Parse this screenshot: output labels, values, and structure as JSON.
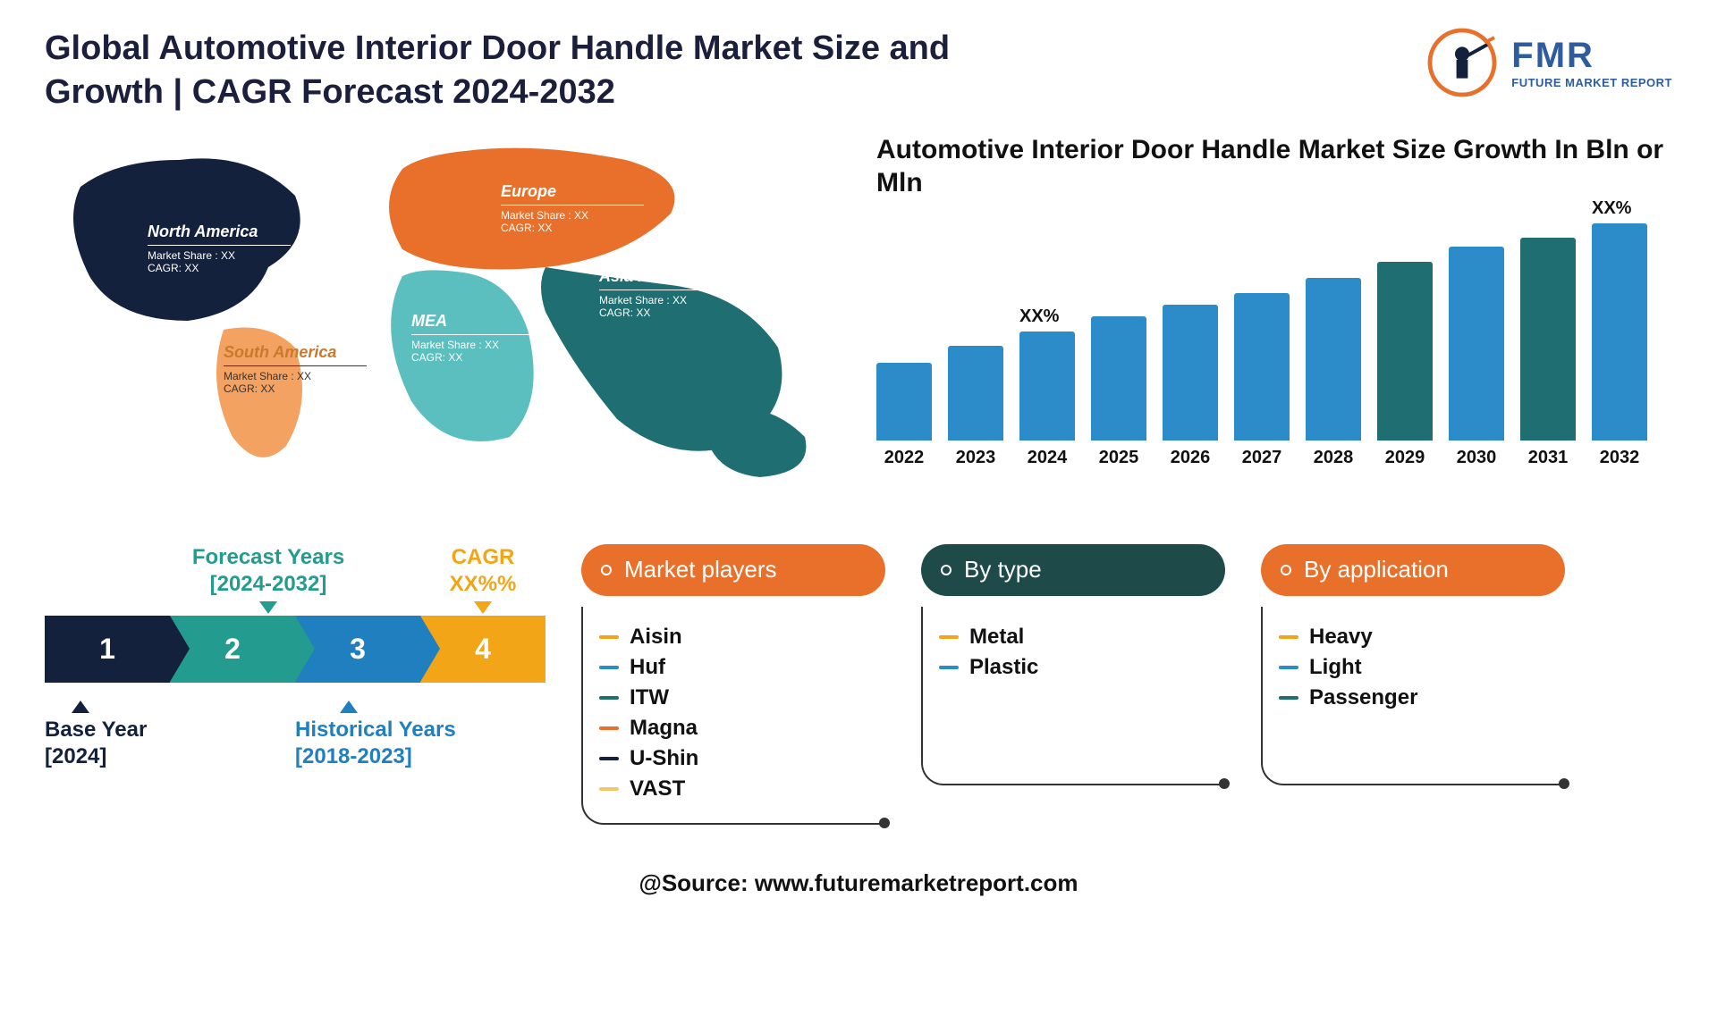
{
  "title": "Global Automotive Interior Door Handle Market Size and Growth | CAGR Forecast 2024-2032",
  "logo": {
    "fmr": "FMR",
    "sub": "FUTURE MARKET REPORT"
  },
  "source": "@Source: www.futuremarketreport.com",
  "map": {
    "regions": [
      {
        "name": "North America",
        "share": "Market Share : XX",
        "cagr": "CAGR: XX",
        "color": "#14213d"
      },
      {
        "name": "South America",
        "share": "Market Share : XX",
        "cagr": "CAGR: XX",
        "color": "#f4a261"
      },
      {
        "name": "Europe",
        "share": "Market Share : XX",
        "cagr": "CAGR: XX",
        "color": "#e8702a"
      },
      {
        "name": "MEA",
        "share": "Market Share : XX",
        "cagr": "CAGR: XX",
        "color": "#5bbfbf"
      },
      {
        "name": "Asia Pacific",
        "share": "Market Share : XX",
        "cagr": "CAGR: XX",
        "color": "#1e6e72"
      }
    ]
  },
  "chart": {
    "title": "Automotive Interior Door Handle Market Size Growth In\nBln or Mln",
    "type": "bar",
    "years": [
      "2022",
      "2023",
      "2024",
      "2025",
      "2026",
      "2027",
      "2028",
      "2029",
      "2030",
      "2031",
      "2032"
    ],
    "values": [
      100,
      122,
      140,
      160,
      175,
      190,
      210,
      230,
      250,
      262,
      280
    ],
    "colors": [
      "#2c8cc9",
      "#2c8cc9",
      "#2c8cc9",
      "#2c8cc9",
      "#2c8cc9",
      "#2c8cc9",
      "#2c8cc9",
      "#1e6e72",
      "#2c8cc9",
      "#1e6e72",
      "#2c8cc9"
    ],
    "annotations": {
      "2": "XX%",
      "10": "XX%"
    },
    "ylim": [
      0,
      300
    ],
    "label_fontsize": 20
  },
  "timeline": {
    "segments": [
      {
        "num": "1",
        "color": "#14213d"
      },
      {
        "num": "2",
        "color": "#239b8e"
      },
      {
        "num": "3",
        "color": "#1f7fbf"
      },
      {
        "num": "4",
        "color": "#f2a516"
      }
    ],
    "labels": {
      "base": {
        "title": "Base Year",
        "range": "[2024]",
        "color": "#14213d"
      },
      "forecast": {
        "title": "Forecast Years",
        "range": "[2024-2032]",
        "color": "#239b8e"
      },
      "hist": {
        "title": "Historical Years",
        "range": "[2018-2023]",
        "color": "#1f7fbf"
      },
      "cagr": {
        "title": "CAGR",
        "range": "XX%%",
        "color": "#f2a516"
      }
    }
  },
  "pills": {
    "players": {
      "title": "Market players",
      "bg": "#e8702a",
      "items": [
        "Aisin",
        "Huf",
        "ITW",
        "Magna",
        "U-Shin",
        "VAST"
      ],
      "tick_colors": [
        "#f2a516",
        "#2c8cc9",
        "#1e6e72",
        "#e8702a",
        "#14213d",
        "#f4c86a"
      ]
    },
    "type": {
      "title": "By type",
      "bg": "#1e4a4a",
      "items": [
        "Metal",
        "Plastic"
      ],
      "tick_colors": [
        "#f2a516",
        "#2c8cc9"
      ]
    },
    "application": {
      "title": "By application",
      "bg": "#e8702a",
      "items": [
        "Heavy",
        "Light",
        "Passenger"
      ],
      "tick_colors": [
        "#f2a516",
        "#2c8cc9",
        "#1e6e72"
      ]
    }
  }
}
